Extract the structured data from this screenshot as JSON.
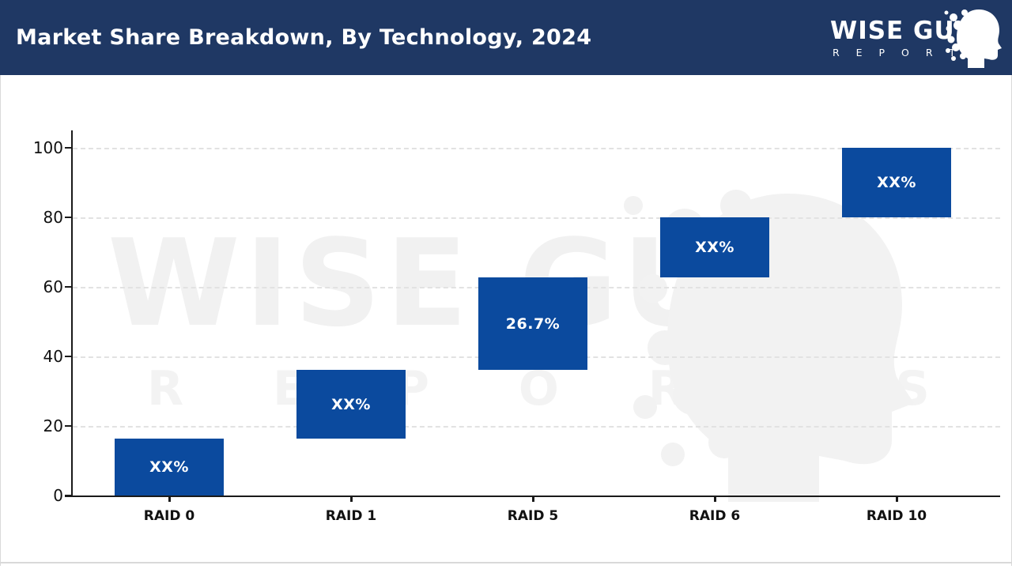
{
  "header": {
    "title": "Market Share Breakdown, By Technology, 2024",
    "logo": {
      "line1": "WISE GUY",
      "line2": "R E P O R T S"
    }
  },
  "watermark": {
    "line1": "WISE GUY",
    "line2": "R E P O R T S"
  },
  "chart_data": {
    "type": "bar",
    "subtype": "floating-segment-waterfall",
    "title": "Market Share Breakdown, By Technology, 2024",
    "categories": [
      "RAID 0",
      "RAID 1",
      "RAID 5",
      "RAID 6",
      "RAID 10"
    ],
    "series": [
      {
        "name": "Market Share (%)",
        "segments": [
          [
            0,
            16.3
          ],
          [
            16.3,
            36.0
          ],
          [
            36.0,
            62.7
          ],
          [
            62.7,
            80.0
          ],
          [
            80.0,
            100.0
          ]
        ]
      }
    ],
    "bar_labels": [
      "XX%",
      "XX%",
      "26.7%",
      "XX%",
      "XX%"
    ],
    "yticks": [
      0,
      20,
      40,
      60,
      80,
      100
    ],
    "ylim": [
      0,
      105
    ],
    "xlabel": "",
    "ylabel": "",
    "grid": "dashed-horizontal",
    "legend": "none",
    "bar_color": "#0b4a9e",
    "label_color": "#ffffff",
    "axis_color": "#1a1a1a",
    "grid_color": "#e2e2e2"
  }
}
